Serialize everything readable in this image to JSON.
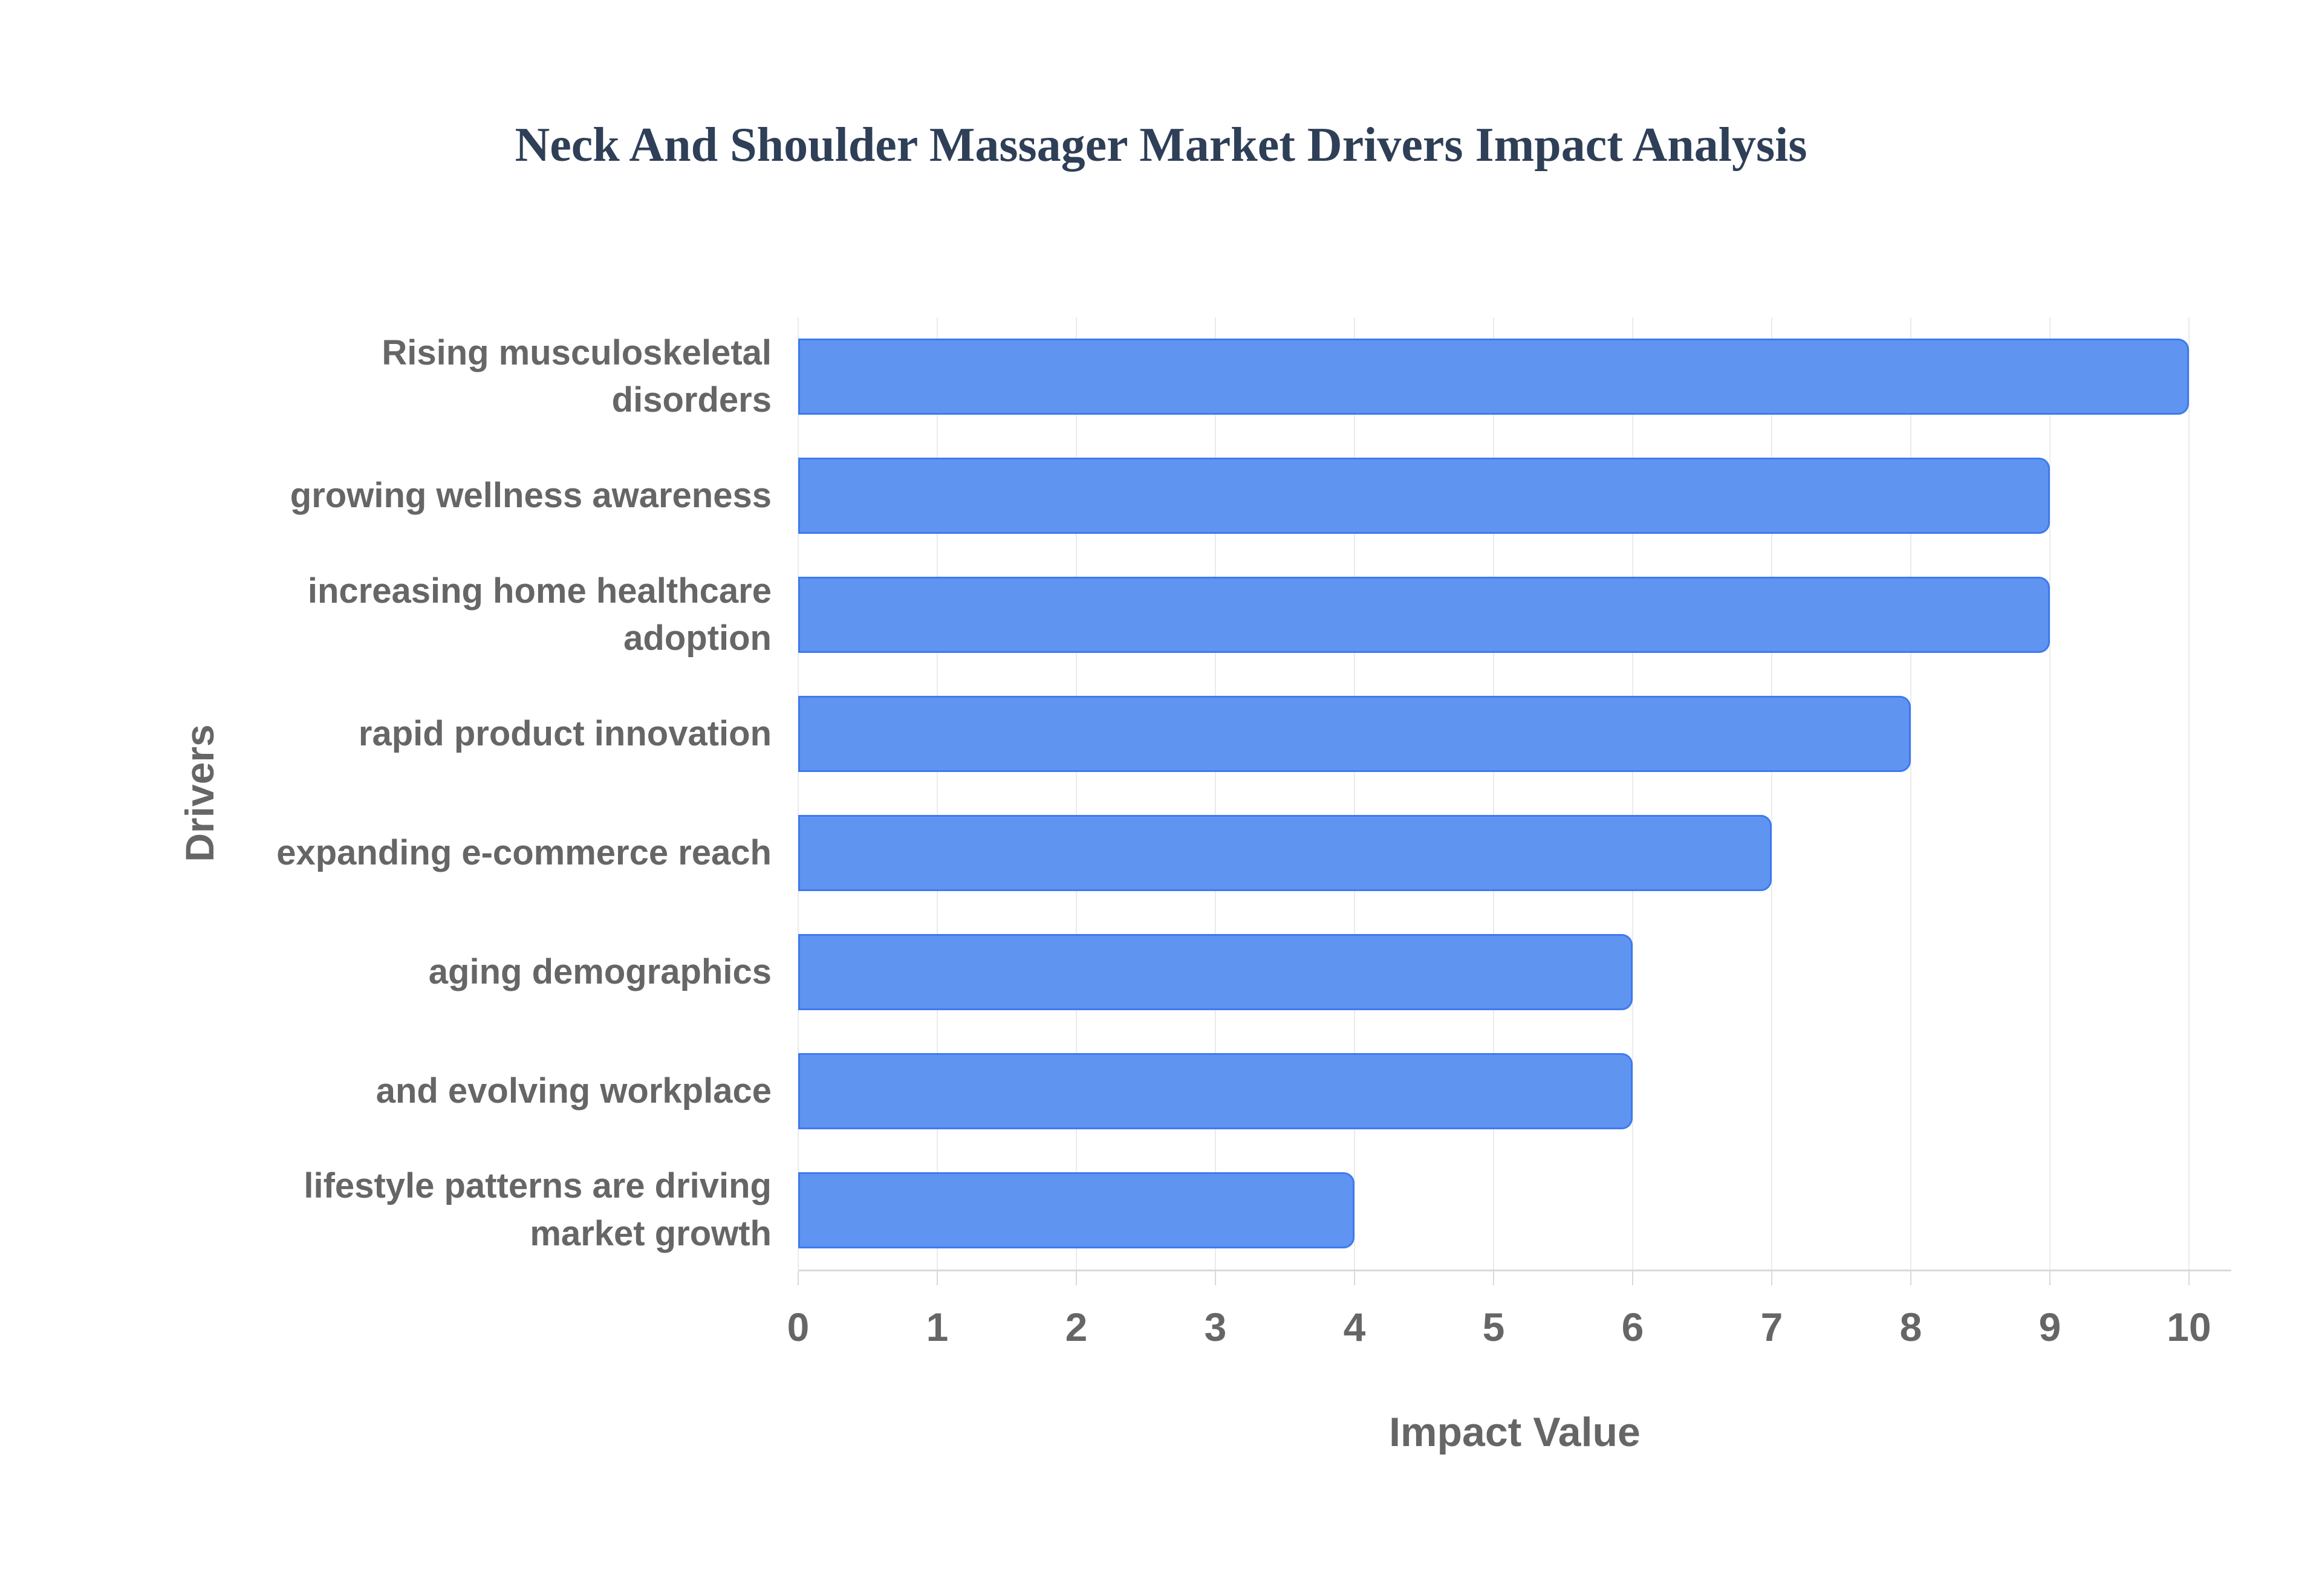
{
  "title": "Neck And Shoulder Massager Market Drivers Impact Analysis",
  "chart_data": {
    "type": "bar",
    "orientation": "horizontal",
    "title": "Neck And Shoulder Massager Market Drivers Impact Analysis",
    "xlabel": "Impact Value",
    "ylabel": "Drivers",
    "categories": [
      "Rising musculoskeletal disorders",
      "growing wellness awareness",
      "increasing home healthcare adoption",
      "rapid product innovation",
      "expanding e-commerce reach",
      "aging demographics",
      "and evolving workplace",
      "lifestyle patterns are driving market growth"
    ],
    "category_label_lines": [
      "Rising musculoskeletal\ndisorders",
      "growing wellness awareness",
      "increasing home healthcare\nadoption",
      "rapid product innovation",
      "expanding e-commerce reach",
      "aging demographics",
      "and evolving workplace",
      "lifestyle patterns are driving\nmarket growth"
    ],
    "values": [
      10,
      9,
      9,
      8,
      7,
      6,
      6,
      4
    ],
    "xlim": [
      0,
      10
    ],
    "xticks": [
      0,
      1,
      2,
      3,
      4,
      5,
      6,
      7,
      8,
      9,
      10
    ],
    "grid": "vertical",
    "legend": "none",
    "colors": {
      "bar_fill": "#6094F1",
      "bar_border": "#3E7AF0",
      "title_text": "#2E3F57",
      "axis_text": "#666666",
      "gridline": "#EBEBEB",
      "axis_line": "#D9D9D9"
    }
  }
}
